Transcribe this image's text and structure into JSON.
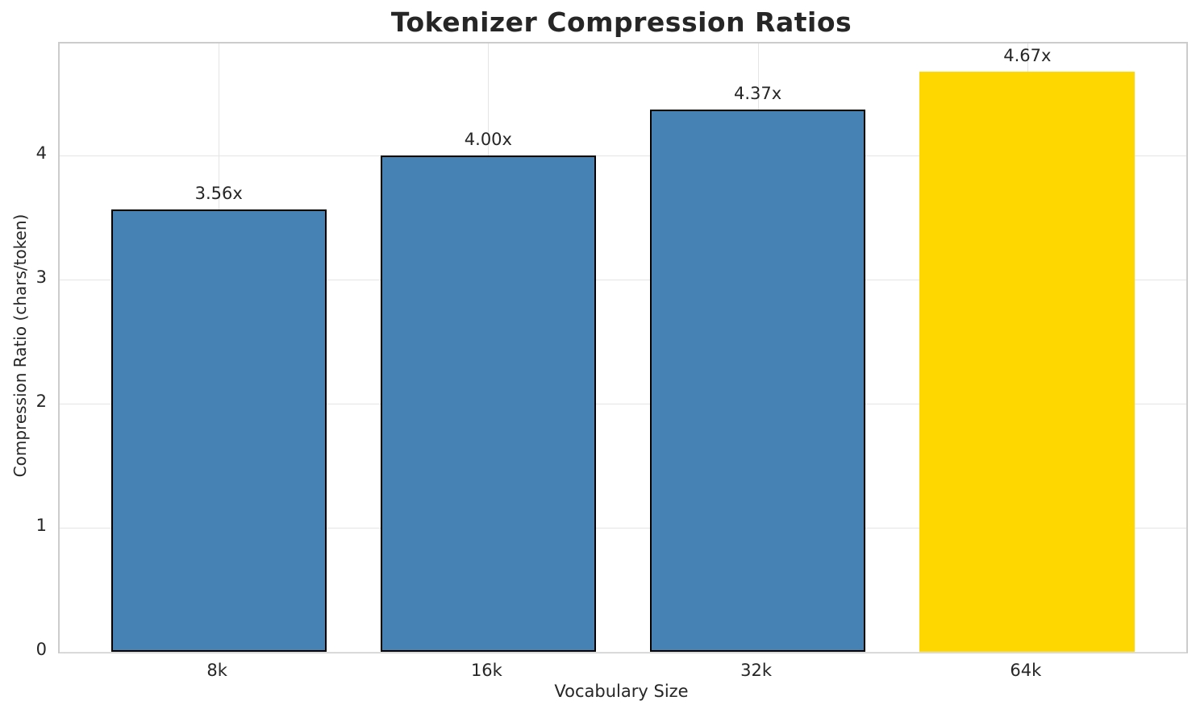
{
  "chart_data": {
    "type": "bar",
    "title": "Tokenizer Compression Ratios",
    "xlabel": "Vocabulary Size",
    "ylabel": "Compression Ratio (chars/token)",
    "categories": [
      "8k",
      "16k",
      "32k",
      "64k"
    ],
    "values": [
      3.56,
      4.0,
      4.37,
      4.67
    ],
    "value_labels": [
      "3.56x",
      "4.00x",
      "4.37x",
      "4.67x"
    ],
    "yticks": [
      "0",
      "1",
      "2",
      "3",
      "4"
    ],
    "ylim": [
      0,
      4.9
    ],
    "grid": true,
    "legend": "none",
    "bar_colors": [
      "#4682B4",
      "#4682B4",
      "#4682B4",
      "#FFD700"
    ],
    "bar_edge_colors": [
      "#000000",
      "#000000",
      "#000000",
      "none"
    ],
    "grid_color": "#e5e5e5",
    "spine_color": "#cccccc",
    "text_color": "#262626",
    "background_color": "#ffffff"
  }
}
